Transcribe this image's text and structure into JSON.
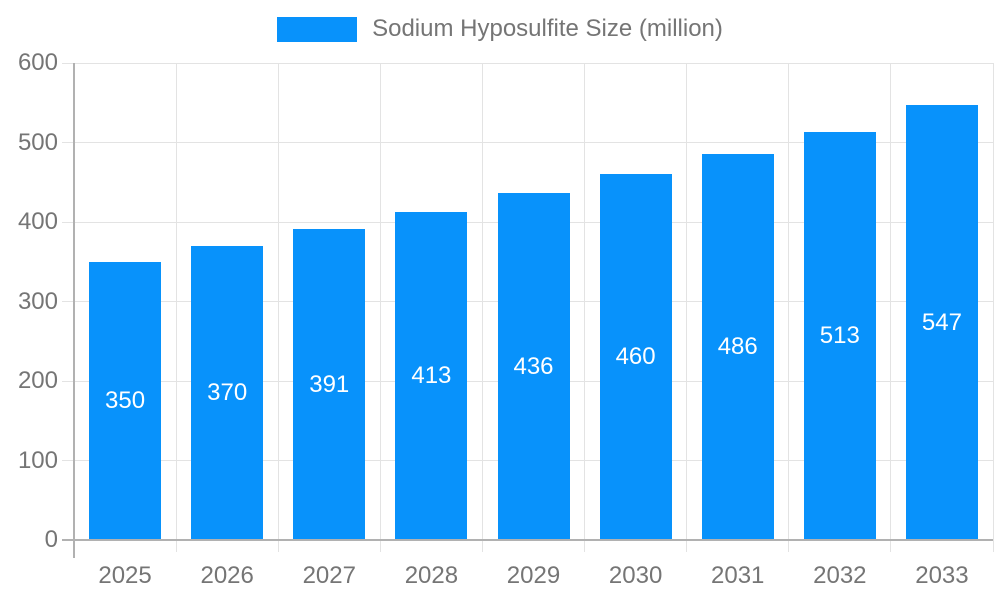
{
  "chart_data": {
    "type": "bar",
    "title": "",
    "categories": [
      "2025",
      "2026",
      "2027",
      "2028",
      "2029",
      "2030",
      "2031",
      "2032",
      "2033"
    ],
    "series": [
      {
        "name": "Sodium Hyposulfite Size (million)",
        "values": [
          350,
          370,
          391,
          413,
          436,
          460,
          486,
          513,
          547
        ]
      }
    ],
    "ylim": [
      0,
      600
    ],
    "y_ticks": [
      0,
      100,
      200,
      300,
      400,
      500,
      600
    ],
    "grid": true,
    "legend_position": "top",
    "value_label_position": "inside-center"
  },
  "colors": {
    "bar": "#0892fb",
    "grid": "#e3e3e3",
    "axis": "#b1b1b1",
    "tick_text": "#757575",
    "legend_text": "#757575",
    "value_label": "#ffffff",
    "background": "#ffffff"
  }
}
